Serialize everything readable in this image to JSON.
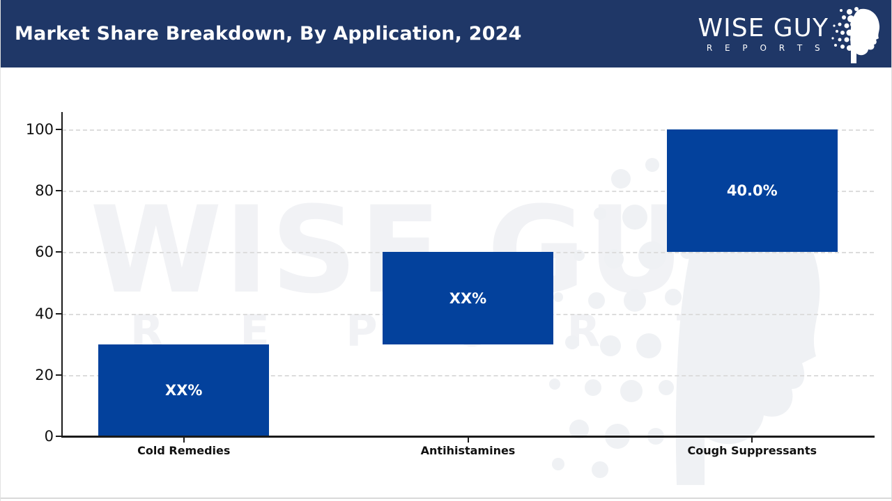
{
  "header": {
    "title": "Market Share Breakdown, By Application, 2024",
    "logo": {
      "line1": "WISE GUY",
      "line2": "R E P O R T S"
    }
  },
  "watermark": {
    "line1": "WISE GUY",
    "line2": "R E P O R T S"
  },
  "chart_data": {
    "type": "bar",
    "subtype": "waterfall",
    "title": "Market Share Breakdown, By Application, 2024",
    "categories": [
      "Cold Remedies",
      "Antihistamines",
      "Cough Suppressants"
    ],
    "bars": [
      {
        "category": "Cold Remedies",
        "start": 0,
        "end": 30,
        "label": "XX%"
      },
      {
        "category": "Antihistamines",
        "start": 30,
        "end": 60,
        "label": "XX%"
      },
      {
        "category": "Cough Suppressants",
        "start": 60,
        "end": 100,
        "label": "40.0%"
      }
    ],
    "yticks": [
      0,
      20,
      40,
      60,
      80,
      100
    ],
    "ylim": [
      0,
      105
    ],
    "xlabel": "",
    "ylabel": "",
    "grid": "horizontal-dashed",
    "legend": "none",
    "colors": {
      "bar": "#03419C",
      "header": "#1F3767",
      "grid": "#DCDCDC",
      "axis": "#1A1A1A",
      "bar_label": "#FFFFFF",
      "watermark": "#F1F2F5"
    }
  }
}
